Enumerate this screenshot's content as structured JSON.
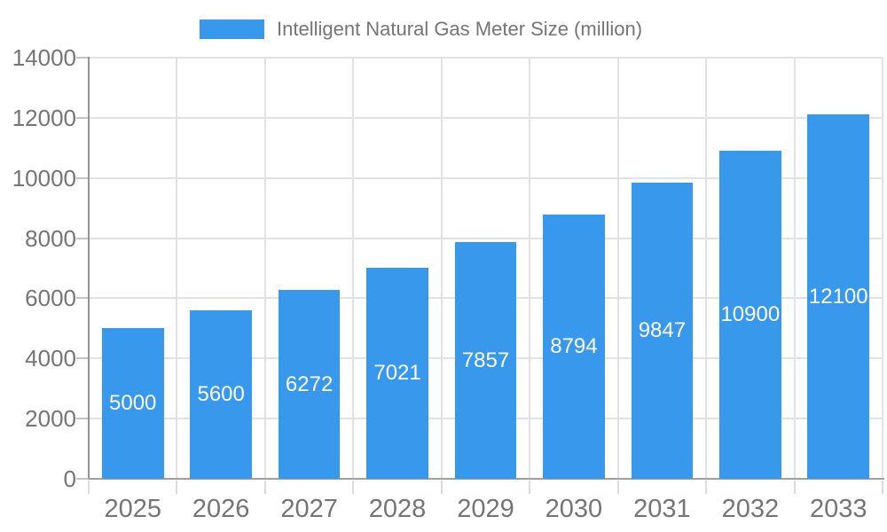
{
  "legend": {
    "label": "Intelligent Natural Gas Meter Size (million)",
    "swatch_color": "#3898ec"
  },
  "chart_data": {
    "type": "bar",
    "title": "Intelligent Natural Gas Meter Size (million)",
    "series_name": "Intelligent Natural Gas Meter Size (million)",
    "categories": [
      "2025",
      "2026",
      "2027",
      "2028",
      "2029",
      "2030",
      "2031",
      "2032",
      "2033"
    ],
    "values": [
      5000,
      5600,
      6272,
      7021,
      7857,
      8794,
      9847,
      10900,
      12100
    ],
    "ylim": [
      0,
      14000
    ],
    "ytick_step": 2000,
    "ytick_labels": [
      "0",
      "2000",
      "4000",
      "6000",
      "8000",
      "10000",
      "12000",
      "14000"
    ],
    "grid": true,
    "legend_position": "top-center",
    "bar_color": "#3898ec",
    "bar_label_color": "#ffffff",
    "axis_text_color": "#757575",
    "gridline_color": "#e2e2e2",
    "axis_line_color": "#949494"
  }
}
